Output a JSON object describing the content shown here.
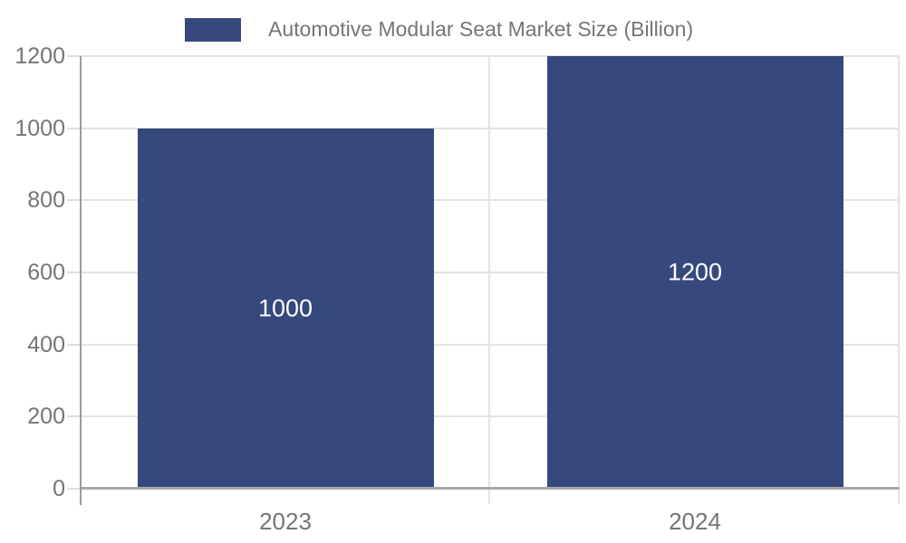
{
  "legend": {
    "label": "Automotive Modular Seat Market Size (Billion)"
  },
  "colors": {
    "bar": "#36497D",
    "gridline": "#E3E3E3",
    "y_axis_line": "#9B9B9B",
    "x_axis_line": "#A9A9A9",
    "tick": "#DCDCDC",
    "text": "#757575",
    "bar_label": "#FFFFFF",
    "background": "#FFFFFF"
  },
  "chart_data": {
    "type": "bar",
    "title": "Automotive Modular Seat Market Size (Billion)",
    "categories": [
      "2023",
      "2024"
    ],
    "values": [
      1000,
      1200
    ],
    "series": [
      {
        "name": "Automotive Modular Seat Market Size (Billion)",
        "values": [
          1000,
          1200
        ]
      }
    ],
    "bar_labels": [
      "1000",
      "1200"
    ],
    "xlabel": "",
    "ylabel": "",
    "ylim": [
      0,
      1200
    ],
    "yticks": [
      0,
      200,
      400,
      600,
      800,
      1000,
      1200
    ],
    "grid": true,
    "legend_position": "top",
    "bar_label_position": "inside-center"
  }
}
